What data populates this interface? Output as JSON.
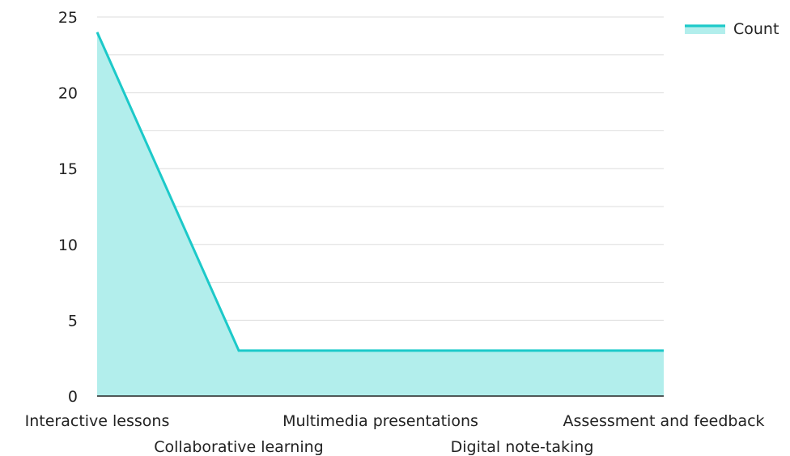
{
  "chart_data": {
    "type": "area",
    "title": "",
    "xlabel": "",
    "ylabel": "",
    "categories": [
      "Interactive lessons",
      "Collaborative learning",
      "Multimedia presentations",
      "Digital note-taking",
      "Assessment and feedback"
    ],
    "series": [
      {
        "name": "Count",
        "values": [
          24,
          3,
          3,
          3,
          3
        ]
      }
    ],
    "ylim": [
      0,
      25
    ],
    "yticks": [
      0,
      5,
      10,
      15,
      20,
      25
    ],
    "grid": true,
    "legend": "top-right",
    "colors": {
      "line": "#1cc9c9",
      "fill": "#b2eeec",
      "grid": "#dddddd",
      "axis": "#222222"
    }
  }
}
